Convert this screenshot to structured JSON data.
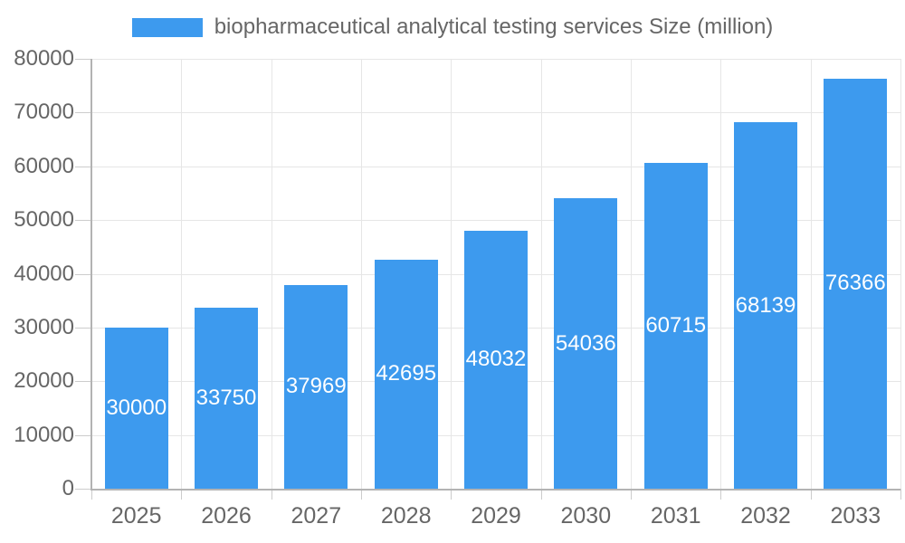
{
  "chart_data": {
    "type": "bar",
    "title": "",
    "legend_label": "biopharmaceutical analytical testing services Size (million)",
    "legend_position": "top-center",
    "categories": [
      "2025",
      "2026",
      "2027",
      "2028",
      "2029",
      "2030",
      "2031",
      "2032",
      "2033"
    ],
    "values": [
      30000,
      33750,
      37969,
      42695,
      48032,
      54036,
      60715,
      68139,
      76366
    ],
    "xlabel": "",
    "ylabel": "",
    "ylim": [
      0,
      80000
    ],
    "y_tick_step": 10000,
    "y_tick_labels": [
      "0",
      "10000",
      "20000",
      "30000",
      "40000",
      "50000",
      "60000",
      "70000",
      "80000"
    ],
    "grid": true,
    "bar_value_labels_inside": true,
    "colors": {
      "bar": "#3D9AEE",
      "bar_label_text": "#FFFFFF",
      "axis_text": "#666666",
      "gridline": "#E6E6E6",
      "axis_line": "#B3B3B3",
      "tick": "#CCCCCC",
      "background": "#FFFFFF"
    }
  }
}
